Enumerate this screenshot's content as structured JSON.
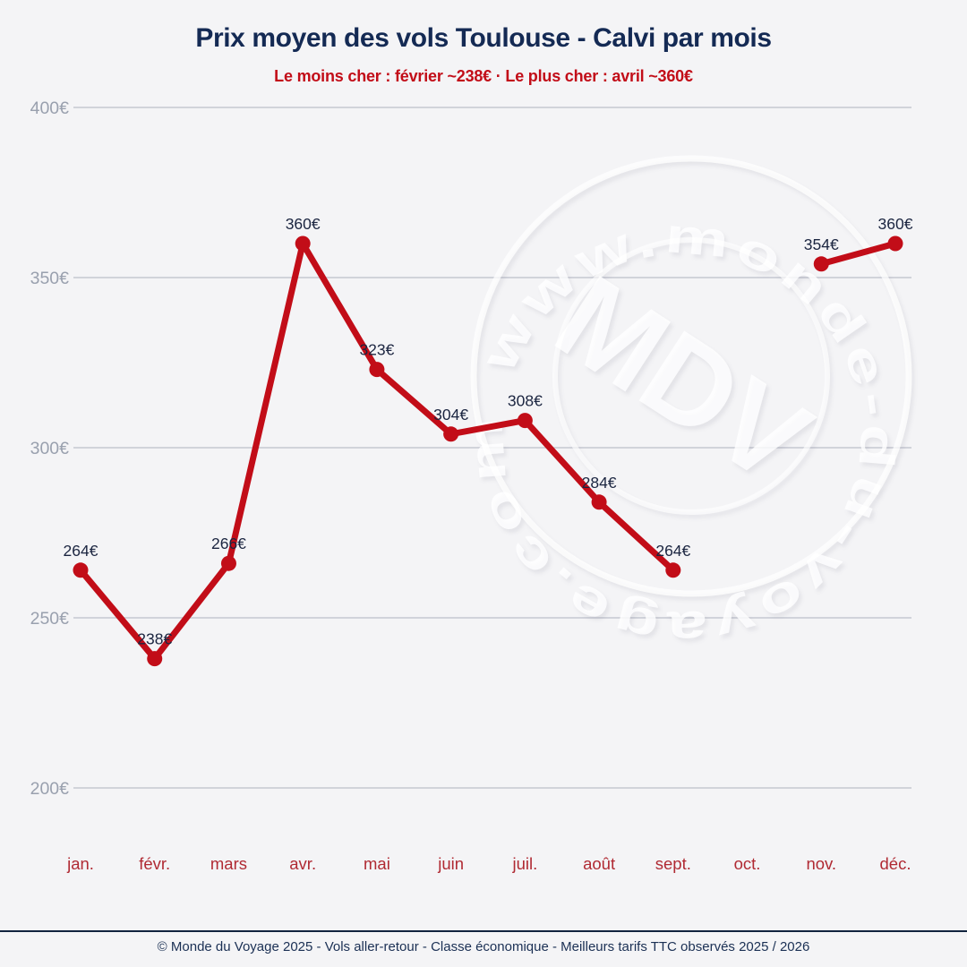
{
  "header": {
    "title": "Prix moyen des vols Toulouse - Calvi par mois",
    "subtitle": "Le moins cher : février ~238€ · Le plus cher : avril ~360€"
  },
  "chart_data": {
    "type": "line",
    "title": "Prix moyen des vols Toulouse - Calvi par mois",
    "categories": [
      "jan.",
      "févr.",
      "mars",
      "avr.",
      "mai",
      "juin",
      "juil.",
      "août",
      "sept.",
      "oct.",
      "nov.",
      "déc."
    ],
    "values": [
      264,
      238,
      266,
      360,
      323,
      304,
      308,
      284,
      264,
      null,
      354,
      360
    ],
    "unit": "€",
    "ylim": [
      200,
      400
    ],
    "yticks": [
      400,
      350,
      300,
      250,
      200
    ],
    "ytick_labels": [
      "400€",
      "350€",
      "300€",
      "250€",
      "200€"
    ],
    "grid": true,
    "legend": false,
    "missing_months": [
      "oct."
    ],
    "colors": {
      "line": "#c20d18",
      "point": "#c20d18",
      "point_label": "#1b2540",
      "month_label": "#b02a33",
      "ytick_label": "#99a0ae",
      "gridline": "#c5c8d1"
    }
  },
  "watermark": {
    "ring_text": "www.monde-du-voyage.com",
    "center_text": "MDV"
  },
  "footer": {
    "text": "© Monde du Voyage 2025 - Vols aller-retour - Classe économique - Meilleurs tarifs TTC observés 2025 / 2026"
  }
}
